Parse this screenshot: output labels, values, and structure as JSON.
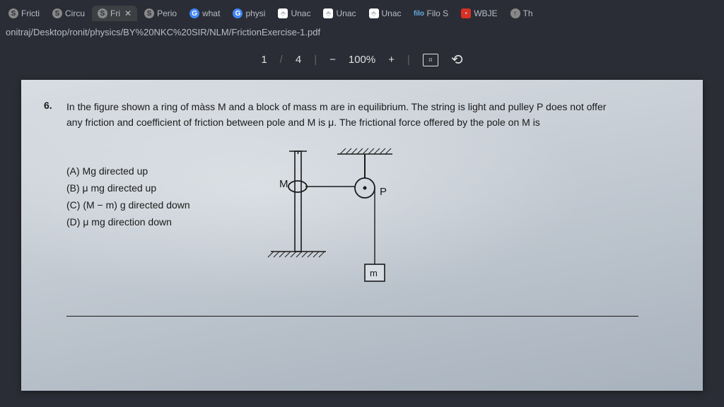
{
  "tabs": [
    {
      "icon": "S",
      "cls": "fav-s",
      "label": "Fricti"
    },
    {
      "icon": "S",
      "cls": "fav-s",
      "label": "Circu"
    },
    {
      "icon": "S",
      "cls": "fav-s",
      "label": "Fri",
      "active": true,
      "close": "✕"
    },
    {
      "icon": "S",
      "cls": "fav-s",
      "label": "Perio"
    },
    {
      "icon": "G",
      "cls": "fav-g",
      "label": "what"
    },
    {
      "icon": "G",
      "cls": "fav-g",
      "label": "physi"
    },
    {
      "icon": "⬘",
      "cls": "fav-u",
      "label": "Unac"
    },
    {
      "icon": "⬘",
      "cls": "fav-u",
      "label": "Unac"
    },
    {
      "icon": "⬘",
      "cls": "fav-u",
      "label": "Unac"
    },
    {
      "icon": "filo",
      "cls": "fav-f",
      "label": "Filo S"
    },
    {
      "icon": "•",
      "cls": "fav-w",
      "label": "WBJE"
    },
    {
      "icon": "↑",
      "cls": "fav-s",
      "label": "Th"
    }
  ],
  "address": "onitraj/Desktop/ronit/physics/BY%20NKC%20SIR/NLM/FrictionExercise-1.pdf",
  "pdf": {
    "page_cur": "1",
    "page_sep": "/",
    "page_total": "4",
    "minus": "−",
    "zoom": "100%",
    "plus": "+",
    "fit": "⠶",
    "rotate": "⟲"
  },
  "question": {
    "num": "6.",
    "text1": "In the figure shown a ring of màss M and a block of mass m are in equilibrium. The string is light and pulley P does not offer any friction and coefficient of friction between pole and M is μ. The frictional force offered by the pole on M is",
    "options": {
      "a": "(A) Mg directed up",
      "b": "(B) μ mg directed up",
      "c": "(C) (M − m) g directed down",
      "d": "(D) μ mg direction down"
    },
    "diagram": {
      "M": "M",
      "P": "P",
      "m": "m"
    }
  },
  "colors": {
    "stroke": "#1a1a1a",
    "hatch": "#1a1a1a",
    "block_fill": "#d6dde3"
  }
}
